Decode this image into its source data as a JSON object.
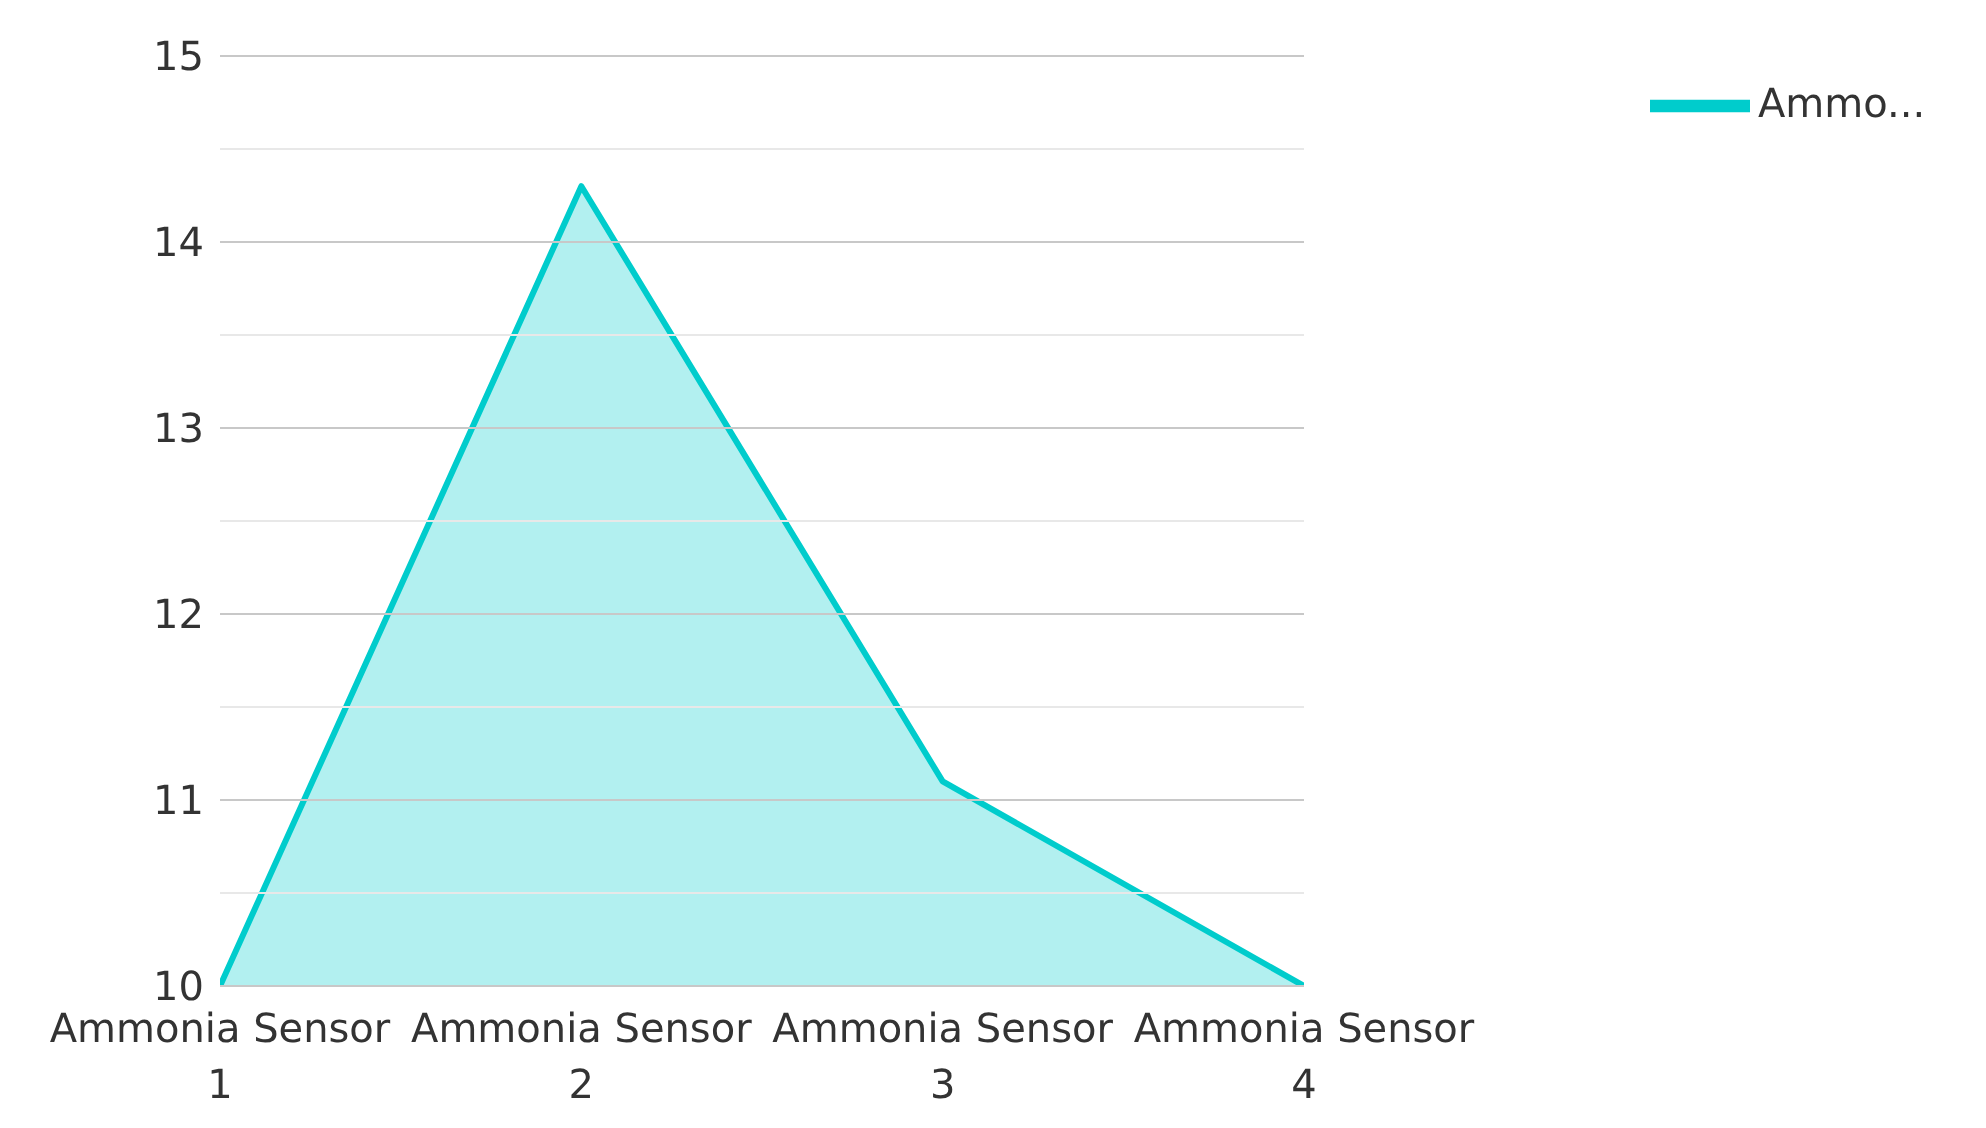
{
  "chart_data": {
    "type": "area",
    "categories": [
      "Ammonia Sensor 1",
      "Ammonia Sensor 2",
      "Ammonia Sensor 3",
      "Ammonia Sensor 4"
    ],
    "series": [
      {
        "name": "Ammo...",
        "color": "#00cccc",
        "values": [
          10,
          14.3,
          11.1,
          10
        ]
      }
    ],
    "ylim": [
      10,
      15
    ],
    "yticks": [
      10,
      {
        "value": 10.5,
        "label": null
      },
      11,
      {
        "value": 11.5,
        "label": null
      },
      12,
      {
        "value": 12.5,
        "label": null
      },
      13,
      {
        "value": 13.5,
        "label": null
      },
      14,
      {
        "value": 14.5,
        "label": null
      },
      15
    ],
    "grid": "y",
    "legend": "top right"
  }
}
